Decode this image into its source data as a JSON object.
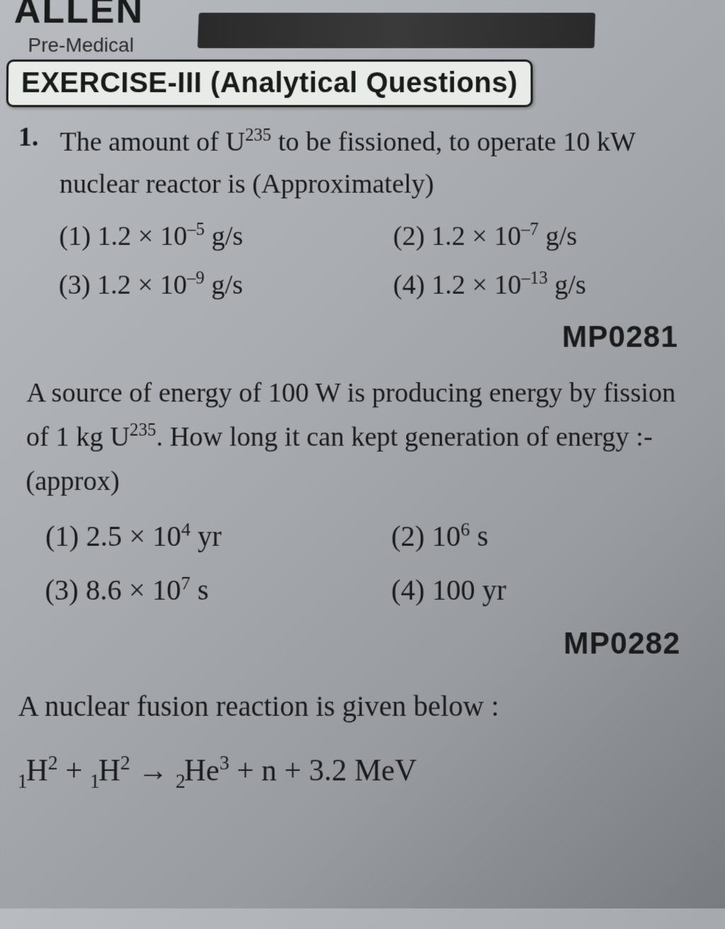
{
  "header": {
    "brand": "ALLEN",
    "subtitle": "Pre-Medical",
    "exercise_title": "EXERCISE-III (Analytical Questions)"
  },
  "q1": {
    "number": "1.",
    "text_part1": "The amount of U",
    "u_exp": "235",
    "text_part2": " to be fissioned, to operate 10 kW nuclear reactor is (Approximately)",
    "opt1_label": "(1) ",
    "opt1_val": "1.2 × 10",
    "opt1_exp": "–5",
    "opt1_unit": " g/s",
    "opt2_label": "(2) ",
    "opt2_val": "1.2 × 10",
    "opt2_exp": "–7",
    "opt2_unit": " g/s",
    "opt3_label": "(3) ",
    "opt3_val": "1.2 × 10",
    "opt3_exp": "–9",
    "opt3_unit": " g/s",
    "opt4_label": "(4) ",
    "opt4_val": "1.2 × 10",
    "opt4_exp": "–13",
    "opt4_unit": " g/s",
    "code": "MP0281"
  },
  "q2": {
    "text_part1": "A source of energy of 100 W is producing energy by fission of 1 kg U",
    "u_exp": "235",
    "text_part2": ". How long it can kept generation of energy :- (approx)",
    "opt1_label": "(1) ",
    "opt1_val": "2.5 × 10",
    "opt1_exp": "4",
    "opt1_unit": " yr",
    "opt2_label": "(2) ",
    "opt2_val": "10",
    "opt2_exp": "6",
    "opt2_unit": " s",
    "opt3_label": "(3) ",
    "opt3_val": "8.6 × 10",
    "opt3_exp": "7",
    "opt3_unit": " s",
    "opt4_label": "(4) ",
    "opt4_val": "100 yr",
    "code": "MP0282"
  },
  "q3": {
    "intro": "A nuclear fusion reaction is given below :",
    "eq_pre1": "1",
    "eq_H1": "H",
    "eq_sup1": "2",
    "eq_plus1": " + ",
    "eq_pre2": "1",
    "eq_H2": "H",
    "eq_sup2": "2",
    "eq_arrow": " → ",
    "eq_pre3": "2",
    "eq_He": "He",
    "eq_sup3": "3",
    "eq_rest": " + n + 3.2 MeV"
  },
  "style": {
    "body_font": "Georgia, Times New Roman, serif",
    "heading_font": "Arial, sans-serif",
    "text_color": "#1a1a1a",
    "banner_bg": "#e8ece8",
    "banner_border": "#1a1a1a",
    "base_fontsize_pt": 38,
    "code_fontsize_pt": 42
  }
}
